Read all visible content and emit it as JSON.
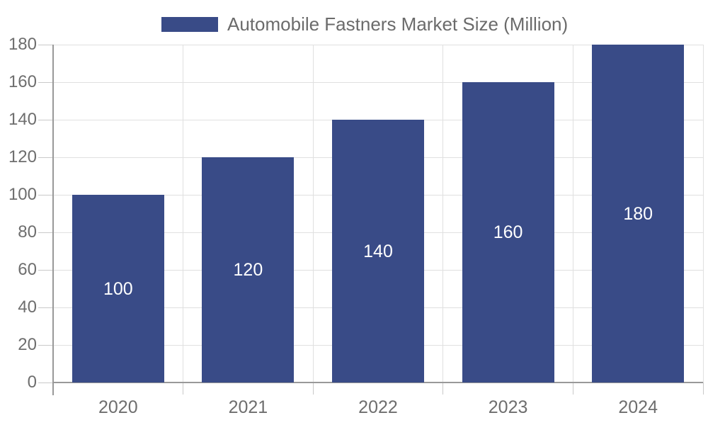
{
  "legend": {
    "label": "Automobile Fastners Market Size (Million)"
  },
  "chart_data": {
    "type": "bar",
    "title": "Automobile Fastners Market Size (Million)",
    "categories": [
      "2020",
      "2021",
      "2022",
      "2023",
      "2024"
    ],
    "series": [
      {
        "name": "Automobile Fastners Market Size (Million)",
        "values": [
          100,
          120,
          140,
          160,
          180
        ],
        "color": "#394b87"
      }
    ],
    "xlabel": "",
    "ylabel": "",
    "ylim": [
      0,
      180
    ],
    "ytick_step": 20,
    "yticks": [
      0,
      20,
      40,
      60,
      80,
      100,
      120,
      140,
      160,
      180
    ],
    "grid": true,
    "legend_position": "top-center",
    "data_labels": {
      "show": true,
      "position": "center"
    }
  },
  "colors": {
    "bar": "#394b87",
    "grid": "#e0e0e0",
    "axis": "#999999",
    "tick": "#c9c9c9",
    "tick_label": "#6e6e6e",
    "legend_text": "#6b6b6b",
    "data_label": "#ffffff",
    "background": "#ffffff"
  }
}
